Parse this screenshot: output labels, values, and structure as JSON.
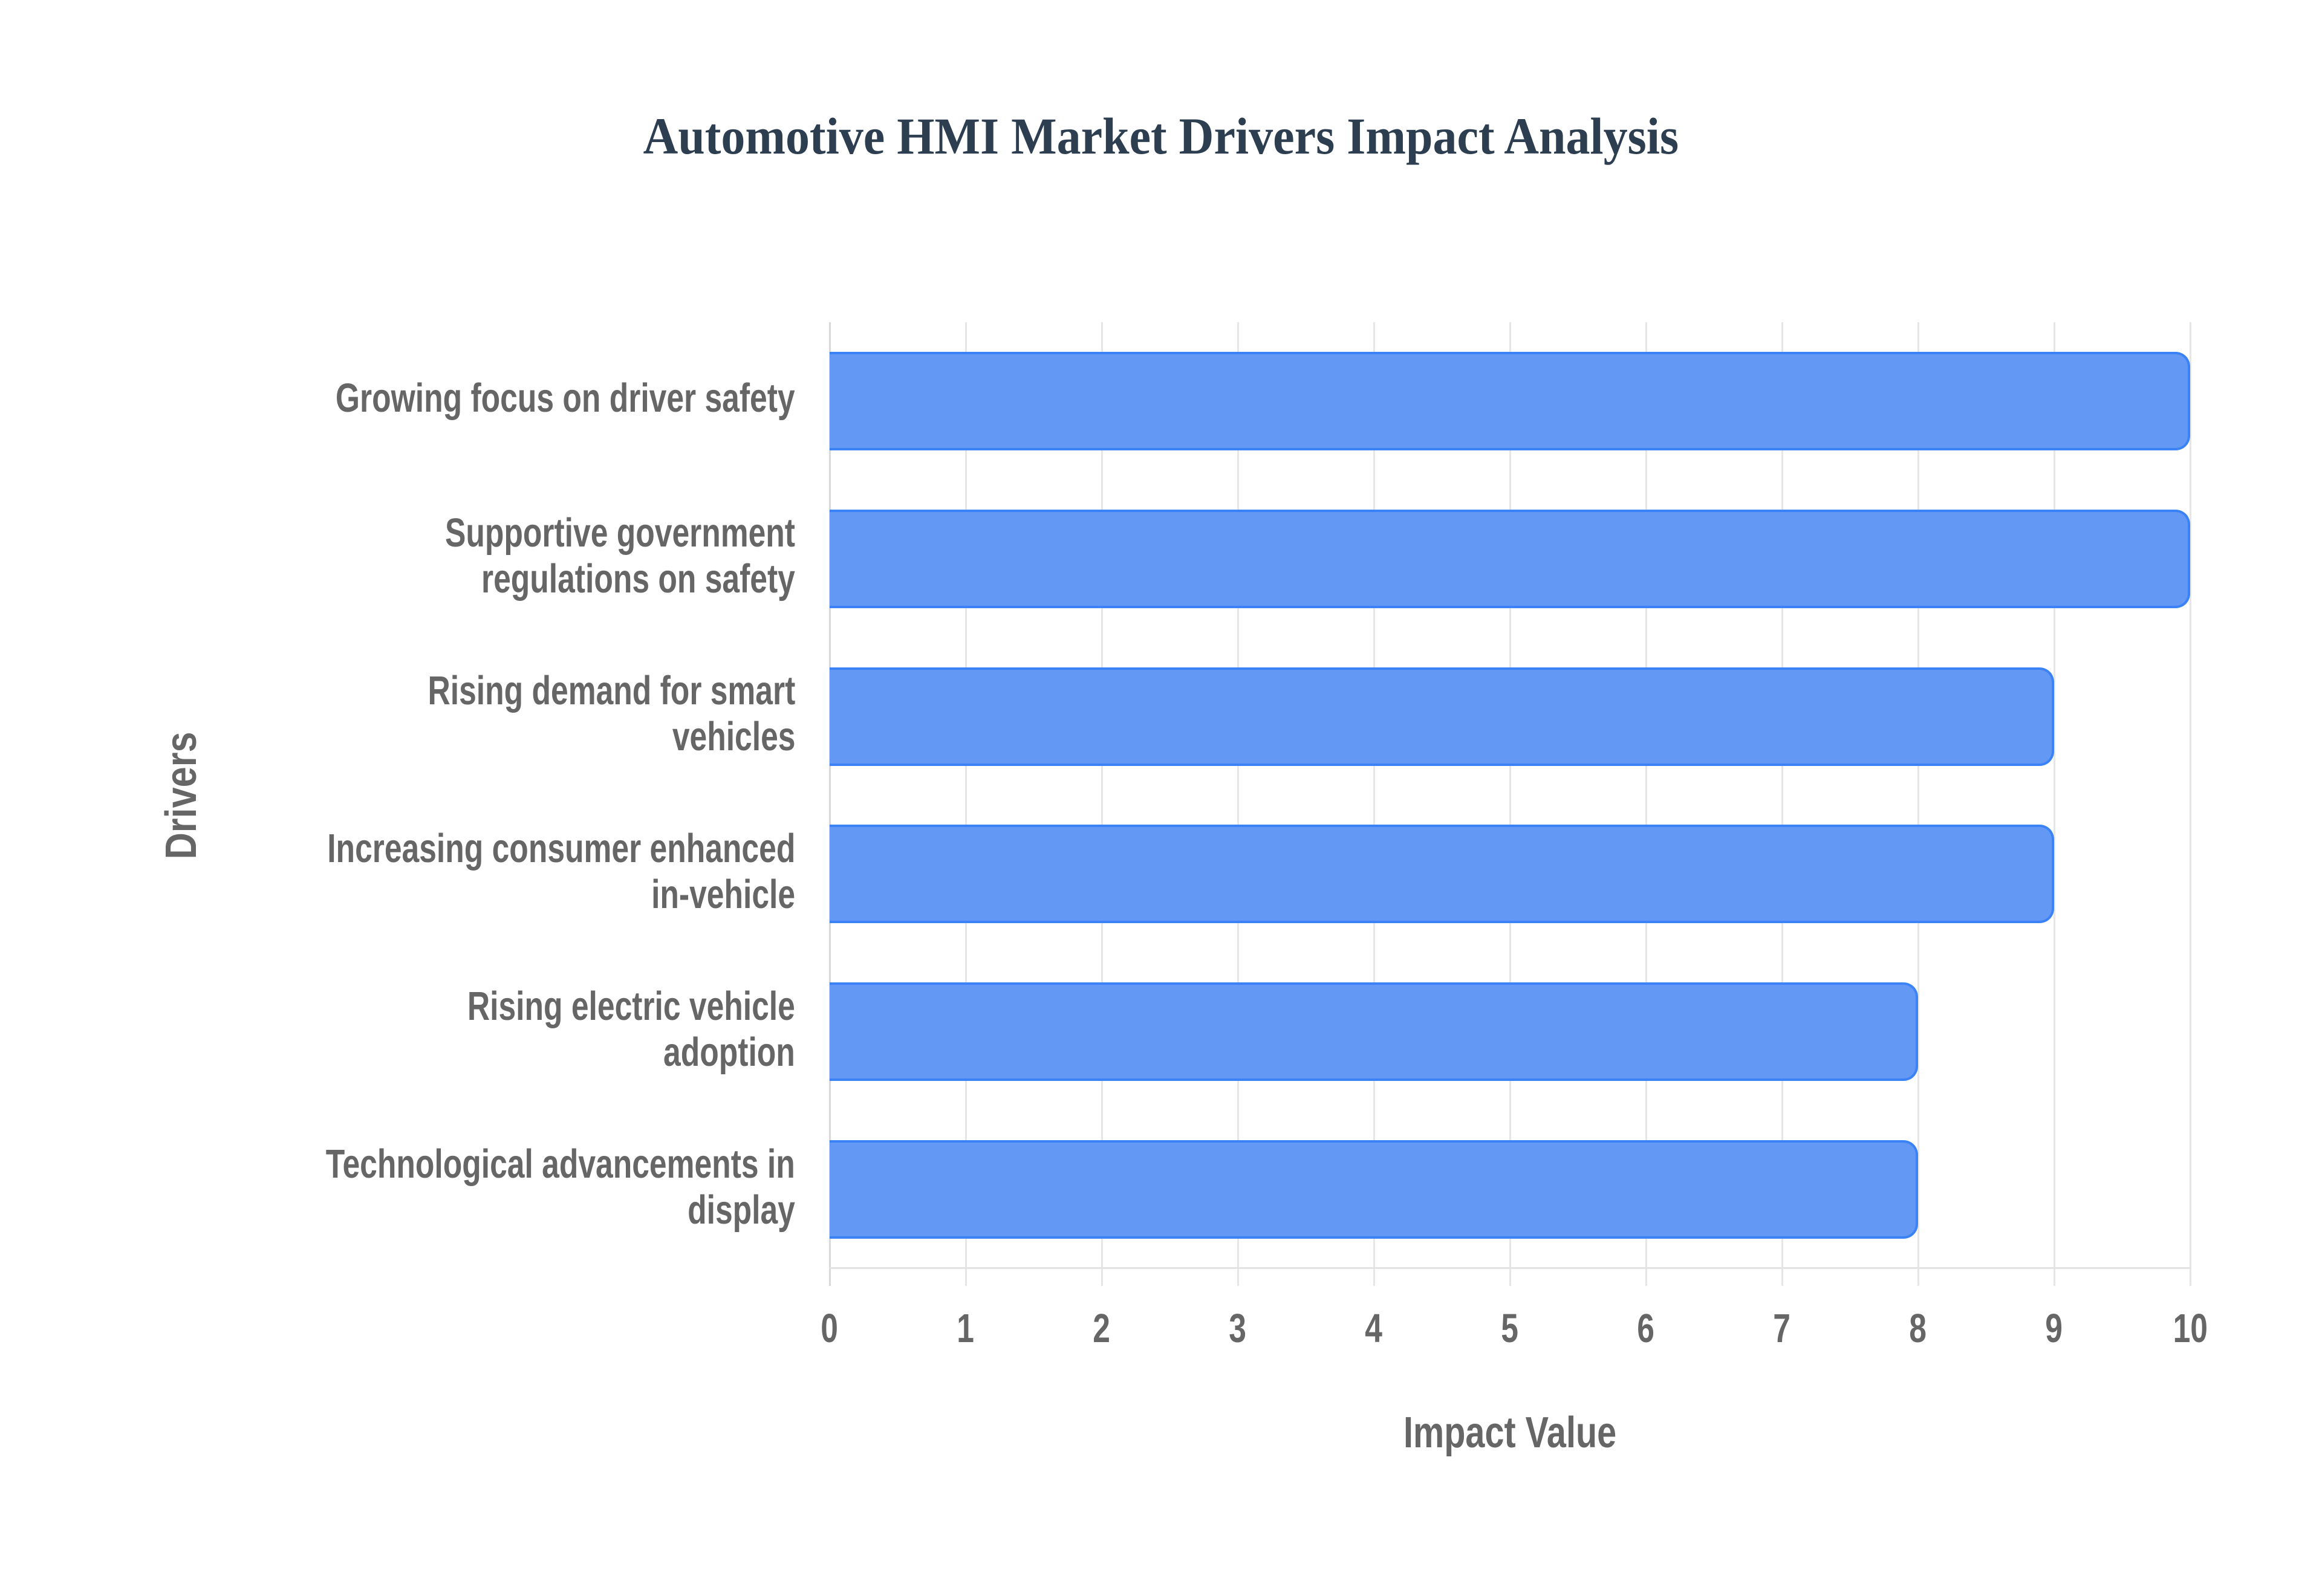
{
  "chart_data": {
    "type": "bar",
    "orientation": "horizontal",
    "title": "Automotive HMI Market Drivers Impact Analysis",
    "xlabel": "Impact Value",
    "ylabel": "Drivers",
    "categories": [
      "Growing focus on driver safety",
      "Supportive government regulations on safety",
      "Rising demand for smart vehicles",
      "Increasing consumer enhanced in-vehicle",
      "Rising electric vehicle adoption",
      "Technological advancements in display"
    ],
    "category_label_lines": [
      [
        "Growing focus on driver safety"
      ],
      [
        "Supportive government",
        "regulations on safety"
      ],
      [
        "Rising demand for smart",
        "vehicles"
      ],
      [
        "Increasing consumer enhanced",
        "in-vehicle"
      ],
      [
        "Rising electric vehicle",
        "adoption"
      ],
      [
        "Technological advancements in",
        "display"
      ]
    ],
    "values": [
      10,
      10,
      9,
      9,
      8,
      8
    ],
    "xlim": [
      0,
      10
    ],
    "xticks": [
      "0",
      "1",
      "2",
      "3",
      "4",
      "5",
      "6",
      "7",
      "8",
      "9",
      "10"
    ],
    "grid": true,
    "legend": null,
    "colors": {
      "bar_fill": "#6399F5",
      "bar_border": "#3B82F6",
      "title": "#2C3E50",
      "axis_text": "#666666",
      "grid": "#E6E6E6"
    }
  }
}
